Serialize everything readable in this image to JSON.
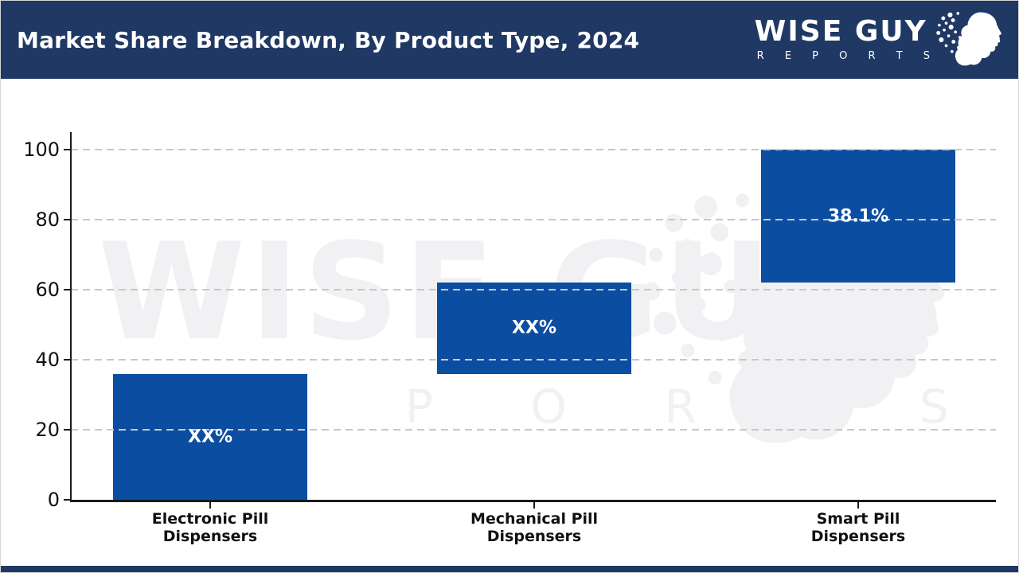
{
  "page": {
    "background": "#ffffff",
    "border_color": "#d6d6d6"
  },
  "header": {
    "title": "Market Share Breakdown, By Product Type, 2024",
    "background_color": "#1f3864",
    "text_color": "#ffffff",
    "logo": {
      "wordmark": "WISE GUY",
      "subtitle": "R E P O R T S",
      "icon": "dotted-face-profile-icon"
    }
  },
  "watermark": {
    "line1": "WISE GUY",
    "line2": "R E P O R T S",
    "icon": "dotted-face-profile-icon",
    "color": "#f1f1f4"
  },
  "footer": {
    "background_color": "#1f3864"
  },
  "chart_data": {
    "type": "bar",
    "subtype": "floating-waterfall",
    "title": "Market Share Breakdown, By Product Type, 2024",
    "categories": [
      "Electronic Pill\nDispensers",
      "Mechanical Pill\nDispensers",
      "Smart Pill\nDispensers"
    ],
    "series": [
      {
        "name": "Electronic Pill Dispensers",
        "start": 0,
        "end": 36,
        "label": "XX%"
      },
      {
        "name": "Mechanical Pill Dispensers",
        "start": 36,
        "end": 62,
        "label": "XX%"
      },
      {
        "name": "Smart Pill Dispensers",
        "start": 62,
        "end": 100,
        "label": "38.1%"
      }
    ],
    "xlabel": "",
    "ylabel": "",
    "ylim": [
      0,
      100
    ],
    "yticks": [
      0,
      20,
      40,
      60,
      80,
      100
    ],
    "grid": "horizontal-dashed",
    "legend": "none",
    "bar_color": "#0b4da1",
    "bar_label_color": "#ffffff",
    "axis_color": "#1a1a1a",
    "gridline_color": "#c8c8c8"
  }
}
